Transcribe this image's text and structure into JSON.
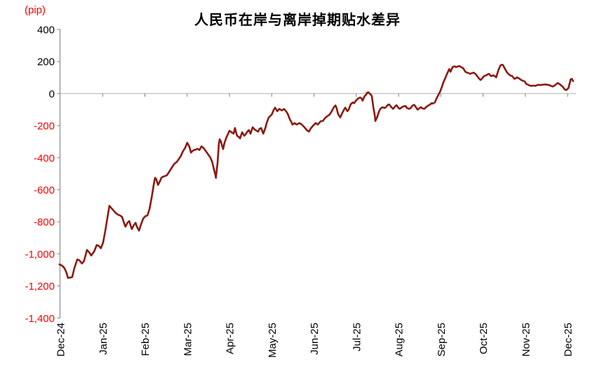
{
  "title": "人民币在岸与离岸掉期贴水差异",
  "axis_unit_label": "(pip)",
  "colors": {
    "line": "#8B1A10",
    "negative_tick_label": "#FF0000",
    "positive_tick_label": "#000000",
    "zero_line": "#BFBFBF",
    "axis": "#7F7F7F",
    "title": "#000000"
  },
  "chart_data": {
    "type": "line",
    "title": "人民币在岸与离岸掉期贴水差异",
    "ylabel": "(pip)",
    "x_unit": "months since Dec-24",
    "x_tick_labels": [
      "Dec-24",
      "Jan-25",
      "Feb-25",
      "Mar-25",
      "Apr-25",
      "May-25",
      "Jun-25",
      "Jul-25",
      "Aug-25",
      "Sep-25",
      "Oct-25",
      "Nov-25",
      "Dec-25"
    ],
    "y_ticks": [
      400,
      200,
      0,
      -200,
      -400,
      -600,
      -800,
      -1000,
      -1200,
      -1400
    ],
    "y_tick_labels": [
      "400",
      "200",
      "0",
      "-200",
      "-400",
      "-600",
      "-800",
      "-1,000",
      "-1,200",
      "-1,400"
    ],
    "ylim": [
      -1400,
      400
    ],
    "grid": "horizontal zero-line only, x ticks drawn on zero line",
    "legend": "none",
    "series_name": "在岸与离岸掉期贴水差异",
    "points": [
      [
        -0.02,
        -1065
      ],
      [
        0.05,
        -1075
      ],
      [
        0.1,
        -1090
      ],
      [
        0.15,
        -1120
      ],
      [
        0.18,
        -1150
      ],
      [
        0.23,
        -1148
      ],
      [
        0.28,
        -1145
      ],
      [
        0.33,
        -1090
      ],
      [
        0.4,
        -1035
      ],
      [
        0.45,
        -1040
      ],
      [
        0.51,
        -1060
      ],
      [
        0.56,
        -1045
      ],
      [
        0.63,
        -975
      ],
      [
        0.68,
        -990
      ],
      [
        0.73,
        -1010
      ],
      [
        0.8,
        -985
      ],
      [
        0.86,
        -945
      ],
      [
        0.91,
        -950
      ],
      [
        0.96,
        -965
      ],
      [
        1.01,
        -930
      ],
      [
        1.06,
        -860
      ],
      [
        1.11,
        -780
      ],
      [
        1.16,
        -700
      ],
      [
        1.21,
        -715
      ],
      [
        1.26,
        -730
      ],
      [
        1.31,
        -745
      ],
      [
        1.36,
        -755
      ],
      [
        1.41,
        -760
      ],
      [
        1.46,
        -770
      ],
      [
        1.51,
        -810
      ],
      [
        1.54,
        -830
      ],
      [
        1.59,
        -805
      ],
      [
        1.63,
        -795
      ],
      [
        1.66,
        -820
      ],
      [
        1.69,
        -845
      ],
      [
        1.74,
        -820
      ],
      [
        1.78,
        -806
      ],
      [
        1.81,
        -830
      ],
      [
        1.86,
        -855
      ],
      [
        1.91,
        -815
      ],
      [
        1.96,
        -780
      ],
      [
        2.01,
        -765
      ],
      [
        2.06,
        -760
      ],
      [
        2.11,
        -720
      ],
      [
        2.16,
        -650
      ],
      [
        2.21,
        -565
      ],
      [
        2.24,
        -525
      ],
      [
        2.27,
        -535
      ],
      [
        2.31,
        -570
      ],
      [
        2.36,
        -545
      ],
      [
        2.39,
        -525
      ],
      [
        2.42,
        -520
      ],
      [
        2.47,
        -515
      ],
      [
        2.52,
        -510
      ],
      [
        2.57,
        -490
      ],
      [
        2.64,
        -460
      ],
      [
        2.69,
        -440
      ],
      [
        2.76,
        -425
      ],
      [
        2.81,
        -405
      ],
      [
        2.85,
        -390
      ],
      [
        2.9,
        -360
      ],
      [
        2.95,
        -340
      ],
      [
        3.0,
        -307
      ],
      [
        3.05,
        -330
      ],
      [
        3.09,
        -368
      ],
      [
        3.14,
        -355
      ],
      [
        3.19,
        -350
      ],
      [
        3.24,
        -345
      ],
      [
        3.29,
        -352
      ],
      [
        3.34,
        -329
      ],
      [
        3.39,
        -340
      ],
      [
        3.44,
        -359
      ],
      [
        3.5,
        -381
      ],
      [
        3.55,
        -400
      ],
      [
        3.59,
        -425
      ],
      [
        3.63,
        -469
      ],
      [
        3.67,
        -510
      ],
      [
        3.68,
        -526
      ],
      [
        3.72,
        -430
      ],
      [
        3.75,
        -315
      ],
      [
        3.77,
        -285
      ],
      [
        3.8,
        -300
      ],
      [
        3.83,
        -329
      ],
      [
        3.85,
        -346
      ],
      [
        3.88,
        -310
      ],
      [
        3.93,
        -272
      ],
      [
        3.97,
        -250
      ],
      [
        4.0,
        -232
      ],
      [
        4.05,
        -241
      ],
      [
        4.1,
        -250
      ],
      [
        4.13,
        -215
      ],
      [
        4.18,
        -263
      ],
      [
        4.22,
        -270
      ],
      [
        4.25,
        -280
      ],
      [
        4.3,
        -241
      ],
      [
        4.35,
        -263
      ],
      [
        4.38,
        -255
      ],
      [
        4.43,
        -235
      ],
      [
        4.46,
        -228
      ],
      [
        4.5,
        -250
      ],
      [
        4.55,
        -210
      ],
      [
        4.6,
        -225
      ],
      [
        4.63,
        -230
      ],
      [
        4.68,
        -237
      ],
      [
        4.71,
        -220
      ],
      [
        4.75,
        -215
      ],
      [
        4.8,
        -250
      ],
      [
        4.85,
        -215
      ],
      [
        4.88,
        -184
      ],
      [
        4.93,
        -149
      ],
      [
        5.0,
        -131
      ],
      [
        5.05,
        -100
      ],
      [
        5.08,
        -88
      ],
      [
        5.13,
        -110
      ],
      [
        5.18,
        -96
      ],
      [
        5.21,
        -100
      ],
      [
        5.24,
        -105
      ],
      [
        5.29,
        -96
      ],
      [
        5.34,
        -110
      ],
      [
        5.38,
        -127
      ],
      [
        5.43,
        -162
      ],
      [
        5.46,
        -175
      ],
      [
        5.49,
        -193
      ],
      [
        5.54,
        -184
      ],
      [
        5.59,
        -193
      ],
      [
        5.63,
        -188
      ],
      [
        5.66,
        -184
      ],
      [
        5.71,
        -193
      ],
      [
        5.76,
        -206
      ],
      [
        5.83,
        -228
      ],
      [
        5.88,
        -237
      ],
      [
        5.93,
        -215
      ],
      [
        5.99,
        -197
      ],
      [
        6.04,
        -184
      ],
      [
        6.09,
        -193
      ],
      [
        6.16,
        -172
      ],
      [
        6.21,
        -171
      ],
      [
        6.26,
        -153
      ],
      [
        6.32,
        -140
      ],
      [
        6.37,
        -131
      ],
      [
        6.42,
        -110
      ],
      [
        6.47,
        -85
      ],
      [
        6.51,
        -74
      ],
      [
        6.54,
        -95
      ],
      [
        6.57,
        -127
      ],
      [
        6.62,
        -149
      ],
      [
        6.67,
        -120
      ],
      [
        6.71,
        -100
      ],
      [
        6.74,
        -88
      ],
      [
        6.79,
        -110
      ],
      [
        6.82,
        -100
      ],
      [
        6.87,
        -66
      ],
      [
        6.92,
        -55
      ],
      [
        6.95,
        -60
      ],
      [
        6.99,
        -45
      ],
      [
        7.04,
        -31
      ],
      [
        7.09,
        -25
      ],
      [
        7.12,
        -28
      ],
      [
        7.15,
        -44
      ],
      [
        7.2,
        -15
      ],
      [
        7.24,
        -5
      ],
      [
        7.25,
        5
      ],
      [
        7.29,
        8
      ],
      [
        7.32,
        0
      ],
      [
        7.35,
        -8
      ],
      [
        7.37,
        -18
      ],
      [
        7.4,
        -80
      ],
      [
        7.44,
        -140
      ],
      [
        7.45,
        -171
      ],
      [
        7.49,
        -150
      ],
      [
        7.54,
        -110
      ],
      [
        7.57,
        -95
      ],
      [
        7.62,
        -85
      ],
      [
        7.67,
        -90
      ],
      [
        7.7,
        -85
      ],
      [
        7.75,
        -70
      ],
      [
        7.78,
        -68
      ],
      [
        7.83,
        -85
      ],
      [
        7.87,
        -95
      ],
      [
        7.92,
        -80
      ],
      [
        7.95,
        -72
      ],
      [
        8.0,
        -90
      ],
      [
        8.03,
        -95
      ],
      [
        8.08,
        -85
      ],
      [
        8.12,
        -80
      ],
      [
        8.17,
        -78
      ],
      [
        8.2,
        -90
      ],
      [
        8.25,
        -95
      ],
      [
        8.28,
        -92
      ],
      [
        8.33,
        -75
      ],
      [
        8.37,
        -70
      ],
      [
        8.41,
        -85
      ],
      [
        8.45,
        -100
      ],
      [
        8.5,
        -90
      ],
      [
        8.53,
        -85
      ],
      [
        8.56,
        -92
      ],
      [
        8.61,
        -95
      ],
      [
        8.65,
        -85
      ],
      [
        8.7,
        -75
      ],
      [
        8.75,
        -68
      ],
      [
        8.78,
        -60
      ],
      [
        8.81,
        -62
      ],
      [
        8.86,
        -55
      ],
      [
        8.9,
        -30
      ],
      [
        8.95,
        -5
      ],
      [
        8.98,
        10
      ],
      [
        9.03,
        45
      ],
      [
        9.06,
        70
      ],
      [
        9.11,
        100
      ],
      [
        9.15,
        125
      ],
      [
        9.2,
        153
      ],
      [
        9.23,
        136
      ],
      [
        9.28,
        166
      ],
      [
        9.33,
        170
      ],
      [
        9.36,
        165
      ],
      [
        9.39,
        168
      ],
      [
        9.44,
        172
      ],
      [
        9.48,
        165
      ],
      [
        9.53,
        158
      ],
      [
        9.58,
        136
      ],
      [
        9.61,
        132
      ],
      [
        9.66,
        128
      ],
      [
        9.69,
        123
      ],
      [
        9.74,
        128
      ],
      [
        9.78,
        131
      ],
      [
        9.83,
        120
      ],
      [
        9.86,
        109
      ],
      [
        9.91,
        92
      ],
      [
        9.94,
        85
      ],
      [
        9.98,
        95
      ],
      [
        10.02,
        108
      ],
      [
        10.07,
        114
      ],
      [
        10.11,
        120
      ],
      [
        10.14,
        123
      ],
      [
        10.19,
        109
      ],
      [
        10.24,
        114
      ],
      [
        10.27,
        110
      ],
      [
        10.31,
        101
      ],
      [
        10.36,
        145
      ],
      [
        10.41,
        175
      ],
      [
        10.44,
        180
      ],
      [
        10.47,
        178
      ],
      [
        10.52,
        153
      ],
      [
        10.57,
        131
      ],
      [
        10.61,
        120
      ],
      [
        10.64,
        114
      ],
      [
        10.69,
        109
      ],
      [
        10.74,
        92
      ],
      [
        10.77,
        95
      ],
      [
        10.8,
        101
      ],
      [
        10.85,
        95
      ],
      [
        10.9,
        85
      ],
      [
        10.94,
        80
      ],
      [
        10.99,
        75
      ],
      [
        11.02,
        60
      ],
      [
        11.07,
        55
      ],
      [
        11.1,
        50
      ],
      [
        11.15,
        48
      ],
      [
        11.19,
        50
      ],
      [
        11.24,
        48
      ],
      [
        11.27,
        52
      ],
      [
        11.32,
        55
      ],
      [
        11.35,
        53
      ],
      [
        11.4,
        55
      ],
      [
        11.44,
        56
      ],
      [
        11.47,
        57
      ],
      [
        11.52,
        55
      ],
      [
        11.57,
        53
      ],
      [
        11.6,
        48
      ],
      [
        11.65,
        44
      ],
      [
        11.69,
        50
      ],
      [
        11.72,
        57
      ],
      [
        11.77,
        66
      ],
      [
        11.82,
        57
      ],
      [
        11.85,
        50
      ],
      [
        11.88,
        44
      ],
      [
        11.93,
        26
      ],
      [
        11.97,
        22
      ],
      [
        12.02,
        35
      ],
      [
        12.05,
        66
      ],
      [
        12.07,
        88
      ],
      [
        12.1,
        92
      ],
      [
        12.13,
        78
      ]
    ]
  }
}
